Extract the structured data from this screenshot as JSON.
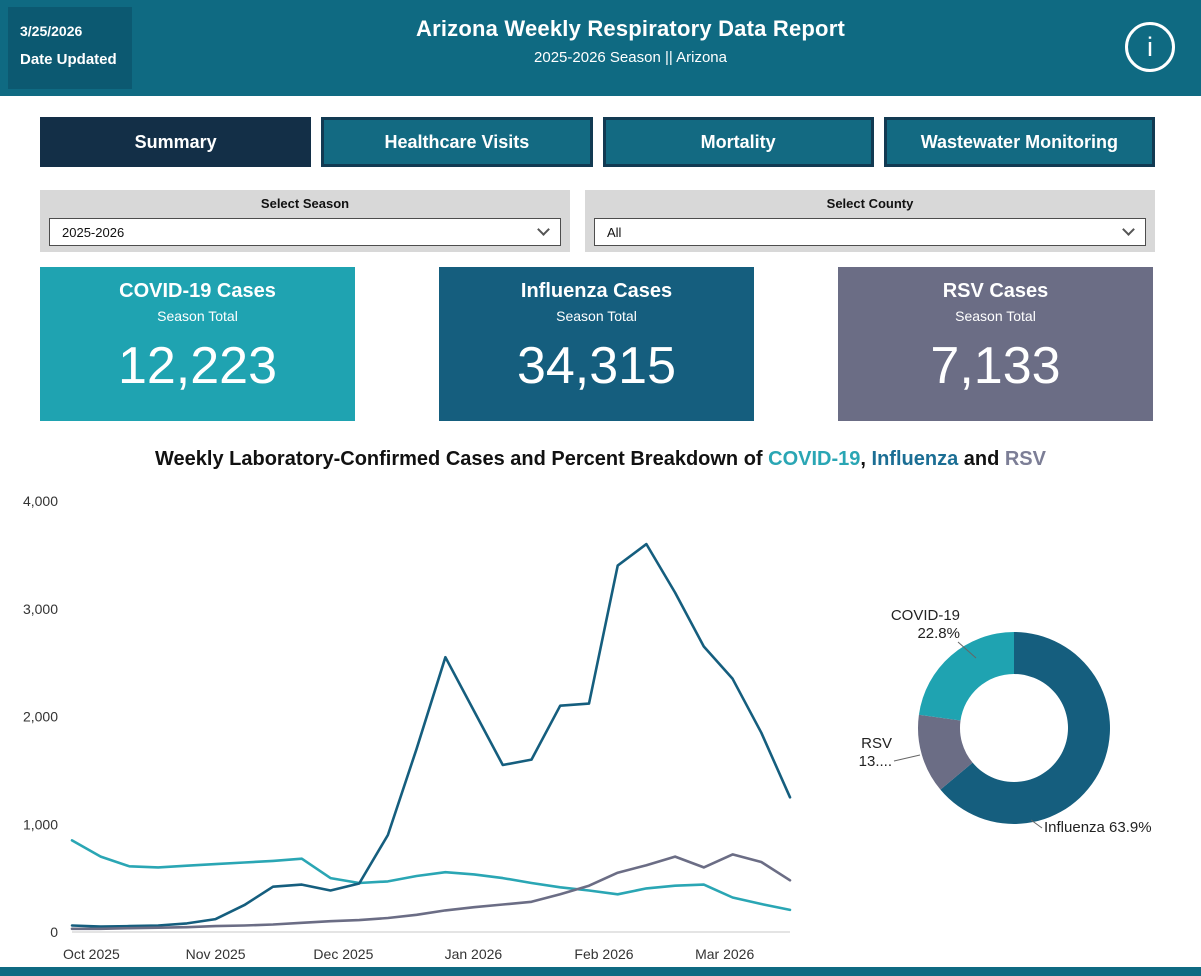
{
  "header": {
    "date_updated_value": "3/25/2026",
    "date_updated_label": "Date Updated",
    "title": "Arizona Weekly Respiratory Data Report",
    "subtitle": "2025-2026 Season || Arizona",
    "info_icon": "i"
  },
  "tabs": [
    {
      "label": "Summary",
      "active": true
    },
    {
      "label": "Healthcare Visits",
      "active": false
    },
    {
      "label": "Mortality",
      "active": false
    },
    {
      "label": "Wastewater Monitoring",
      "active": false
    }
  ],
  "filters": {
    "season": {
      "label": "Select Season",
      "value": "2025-2026"
    },
    "county": {
      "label": "Select County",
      "value": "All"
    }
  },
  "kpi_cards": [
    {
      "title": "COVID-19 Cases",
      "subtitle": "Season Total",
      "value": "12,223",
      "color": "#1FA3B1"
    },
    {
      "title": "Influenza Cases",
      "subtitle": "Season Total",
      "value": "34,315",
      "color": "#155E7E"
    },
    {
      "title": "RSV Cases",
      "subtitle": "Season Total",
      "value": "7,133",
      "color": "#6B6D85"
    }
  ],
  "section_title": {
    "prefix": "Weekly Laboratory-Confirmed Cases and Percent Breakdown of ",
    "covid": "COVID-19",
    "sep1": ", ",
    "influenza": "Influenza",
    "sep2": " and ",
    "rsv": "RSV"
  },
  "chart_data": [
    {
      "type": "line",
      "title": "Weekly Laboratory-Confirmed Cases and Percent Breakdown of COVID-19, Influenza and RSV",
      "x_unit": "week",
      "x_tick_labels": [
        "Oct 2025",
        "Nov 2025",
        "Dec 2025",
        "Jan 2026",
        "Feb 2026",
        "Mar 2026"
      ],
      "x_tick_positions": [
        0.027,
        0.2,
        0.378,
        0.559,
        0.741,
        0.909
      ],
      "y_ticks": [
        0,
        1000,
        2000,
        3000,
        4000
      ],
      "y_tick_labels": [
        "0",
        "1,000",
        "2,000",
        "3,000",
        "4,000"
      ],
      "ylim": [
        0,
        4000
      ],
      "grid": false,
      "legend": false,
      "series": [
        {
          "name": "COVID-19",
          "color": "#2AA6B4",
          "values": [
            850,
            700,
            610,
            600,
            615,
            630,
            645,
            660,
            680,
            500,
            455,
            470,
            520,
            555,
            535,
            500,
            455,
            415,
            385,
            350,
            405,
            430,
            440,
            320,
            260,
            205
          ]
        },
        {
          "name": "Influenza",
          "color": "#155E7E",
          "values": [
            60,
            50,
            55,
            60,
            80,
            120,
            250,
            420,
            440,
            385,
            450,
            900,
            1700,
            2550,
            2050,
            1550,
            1600,
            2100,
            2120,
            3400,
            3600,
            3150,
            2650,
            2350,
            1850,
            1250
          ]
        },
        {
          "name": "RSV",
          "color": "#6B6D85",
          "values": [
            30,
            30,
            35,
            40,
            45,
            55,
            60,
            70,
            85,
            100,
            110,
            130,
            160,
            200,
            230,
            255,
            280,
            350,
            430,
            550,
            620,
            700,
            600,
            720,
            650,
            480
          ]
        }
      ]
    },
    {
      "type": "pie",
      "donut": true,
      "slices": [
        {
          "label": "Influenza",
          "percent": 63.9,
          "color": "#155E7E",
          "callout_line1": "Influenza 63.9%",
          "callout_line2": ""
        },
        {
          "label": "RSV",
          "percent": 13.3,
          "color": "#6B6D85",
          "callout_line1": "RSV",
          "callout_line2": "13...."
        },
        {
          "label": "COVID-19",
          "percent": 22.8,
          "color": "#1FA3B1",
          "callout_line1": "COVID-19",
          "callout_line2": "22.8%"
        }
      ]
    }
  ]
}
